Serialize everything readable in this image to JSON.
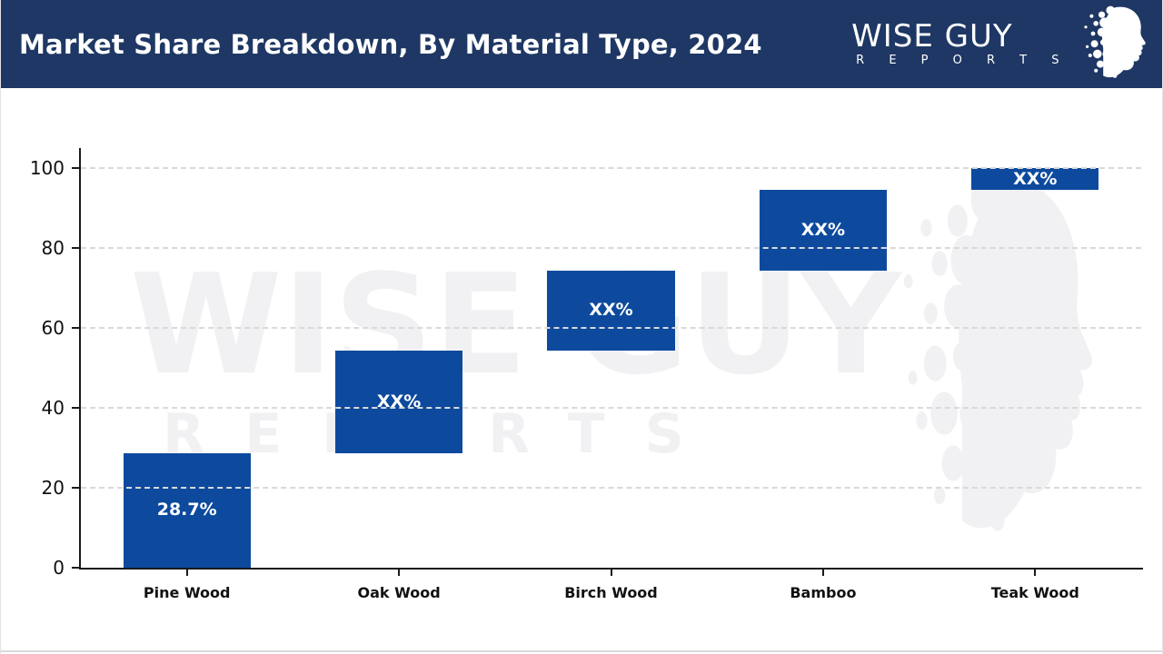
{
  "header": {
    "title": "Market Share Breakdown, By Material Type, 2024",
    "bg_color": "#1e3764",
    "logo": {
      "line1": "WISE GUY",
      "line2": "REPORTS"
    }
  },
  "watermark": {
    "line1": "WISE GUY",
    "line2": "REPORTS",
    "color": "#f1f1f3"
  },
  "chart_data": {
    "type": "bar",
    "subtype": "waterfall",
    "title": "Market Share Breakdown, By Material Type, 2024",
    "categories": [
      "Pine Wood",
      "Oak Wood",
      "Birch Wood",
      "Bamboo",
      "Teak Wood"
    ],
    "segments": [
      [
        0,
        28.7
      ],
      [
        28.7,
        54.3
      ],
      [
        54.3,
        74.4
      ],
      [
        74.4,
        94.5
      ],
      [
        94.5,
        100
      ]
    ],
    "increments": [
      28.7,
      25.6,
      20.1,
      20.1,
      5.5
    ],
    "bar_labels": [
      "28.7%",
      "XX%",
      "XX%",
      "XX%",
      "XX%"
    ],
    "xlabel": "",
    "ylabel": "",
    "ylim": [
      0,
      100
    ],
    "yticks": [
      0,
      20,
      40,
      60,
      80,
      100
    ],
    "grid": "horizontal-dashed, drawn above bars",
    "legend": "none",
    "bar_color": "#0d4a9e",
    "label_color": "#ffffff",
    "grid_color": "#d9d9d9",
    "axis_color": "#1a1a1a",
    "tick_text_color": "#111111"
  }
}
